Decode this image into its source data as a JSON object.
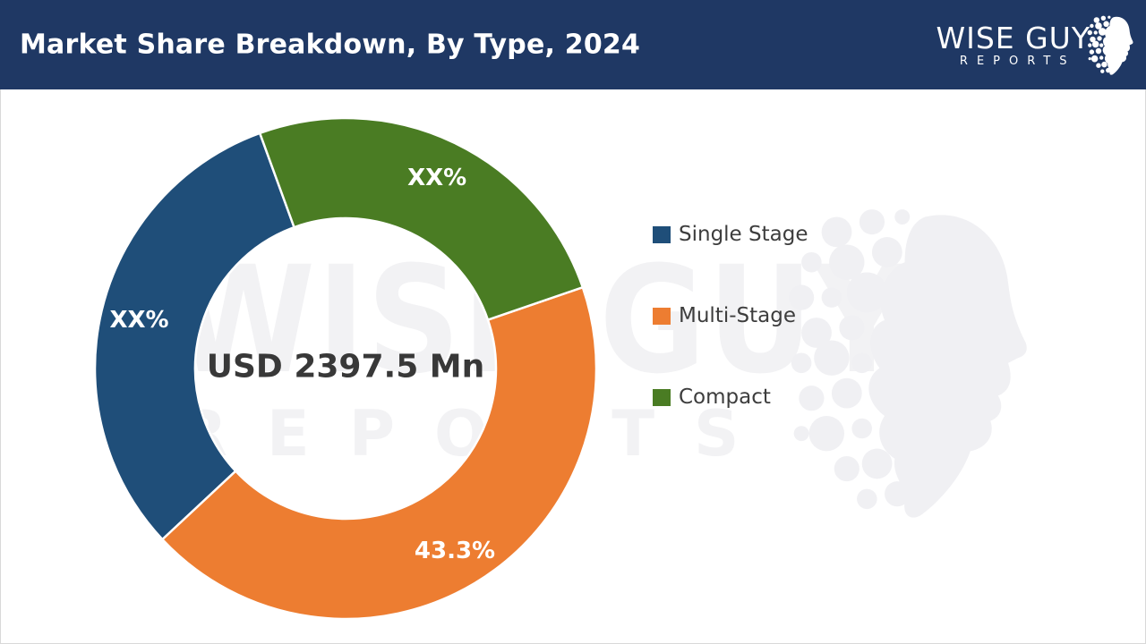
{
  "header": {
    "title": "Market Share Breakdown, By Type, 2024",
    "background_color": "#1f3864"
  },
  "brand": {
    "name": "WISE GUY",
    "subtitle": "REPORTS"
  },
  "chart_data": {
    "type": "pie",
    "subtype": "donut",
    "title": "Market Share Breakdown, By Type, 2024",
    "center_label": "USD 2397.5 Mn",
    "start_angle_deg": 110,
    "direction": "counterclockwise",
    "donut_hole_ratio": 0.6,
    "legend_position": "right",
    "segments": [
      {
        "name": "Single Stage",
        "value_pct": 31.4,
        "display_label": "XX%",
        "color": "#1f4e79"
      },
      {
        "name": "Multi-Stage",
        "value_pct": 43.3,
        "display_label": "43.3%",
        "color": "#ed7d31"
      },
      {
        "name": "Compact",
        "value_pct": 25.3,
        "display_label": "XX%",
        "color": "#4a7c23"
      }
    ]
  }
}
